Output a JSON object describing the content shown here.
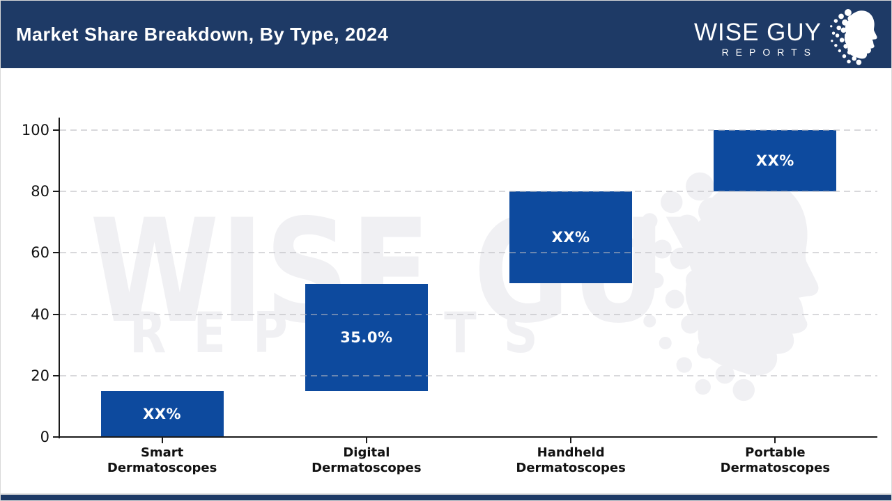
{
  "header": {
    "title": "Market Share Breakdown, By Type, 2024",
    "logo": {
      "line1": "WISE GUY",
      "line2": "REPORTS"
    }
  },
  "watermark": {
    "line1": "WISE GUY",
    "line2": "REPORTS"
  },
  "chart_data": {
    "type": "bar",
    "subtype": "waterfall",
    "title": "Market Share Breakdown, By Type, 2024",
    "categories": [
      "Smart Dermatoscopes",
      "Digital Dermatoscopes",
      "Handheld Dermatoscopes",
      "Portable Dermatoscopes"
    ],
    "category_lines": [
      [
        "Smart",
        "Dermatoscopes"
      ],
      [
        "Digital",
        "Dermatoscopes"
      ],
      [
        "Handheld",
        "Dermatoscopes"
      ],
      [
        "Portable",
        "Dermatoscopes"
      ]
    ],
    "segments": [
      {
        "category": "Smart Dermatoscopes",
        "start": 0,
        "end": 15,
        "label": "XX%"
      },
      {
        "category": "Digital Dermatoscopes",
        "start": 15,
        "end": 50,
        "label": "35.0%"
      },
      {
        "category": "Handheld Dermatoscopes",
        "start": 50,
        "end": 80,
        "label": "XX%"
      },
      {
        "category": "Portable Dermatoscopes",
        "start": 80,
        "end": 100,
        "label": "XX%"
      }
    ],
    "xlabel": "",
    "ylabel": "",
    "ylim": [
      0,
      100
    ],
    "yticks": [
      0,
      20,
      40,
      60,
      80,
      100
    ],
    "grid": {
      "horizontal": true,
      "style": "dashed",
      "on_top_of_bars": true
    },
    "legend": null
  },
  "colors": {
    "header_bg": "#1e3a66",
    "footer_bg": "#1e3a66",
    "bar": "#0d4a9e",
    "bar_label": "#ffffff",
    "watermark": "#f0f0f3",
    "axis": "#1a1a1a",
    "grid": "#b9b9be"
  }
}
